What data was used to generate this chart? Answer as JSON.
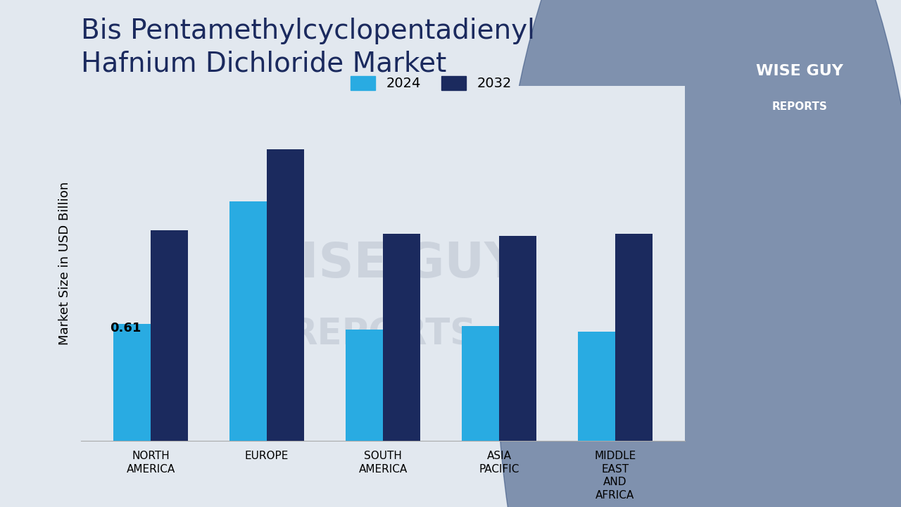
{
  "title_line1": "Bis Pentamethylcyclopentadienyl",
  "title_line2": "Hafnium Dichloride Market",
  "ylabel": "Market Size in USD Billion",
  "categories": [
    "NORTH\nAMERICA",
    "EUROPE",
    "SOUTH\nAMERICA",
    "ASIA\nPACIFIC",
    "MIDDLE\nEAST\nAND\nAFRICA"
  ],
  "values_2024": [
    0.61,
    1.25,
    0.58,
    0.6,
    0.57
  ],
  "values_2032": [
    1.1,
    1.52,
    1.08,
    1.07,
    1.08
  ],
  "color_2024": "#29ABE2",
  "color_2032": "#1B2A5E",
  "annotation_value": "0.61",
  "background_color": "#E2E8EF",
  "legend_labels": [
    "2024",
    "2032"
  ],
  "bar_width": 0.32,
  "ylim": [
    0,
    1.85
  ],
  "title_color": "#1B2A5E",
  "title_fontsize": 28,
  "ylabel_fontsize": 13,
  "tick_fontsize": 11,
  "legend_fontsize": 14,
  "annotation_fontsize": 13,
  "right_panel_color": "#1a2a5c",
  "watermark_color": "#c5cdd8",
  "circle_color": "#2e4a7a"
}
